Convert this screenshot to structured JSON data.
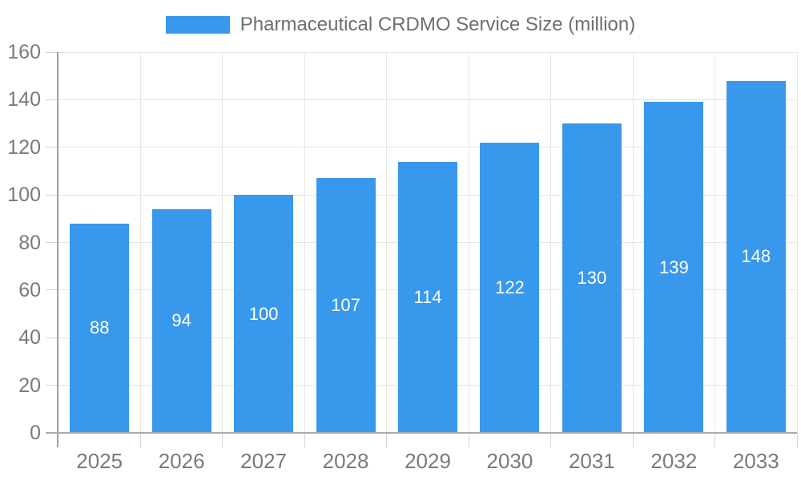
{
  "legend": {
    "label": "Pharmaceutical CRDMO Service Size (million)"
  },
  "chart_data": {
    "type": "bar",
    "title": "Pharmaceutical CRDMO Service Size (million)",
    "categories": [
      "2025",
      "2026",
      "2027",
      "2028",
      "2029",
      "2030",
      "2031",
      "2032",
      "2033"
    ],
    "values": [
      88,
      94,
      100,
      107,
      114,
      122,
      130,
      139,
      148
    ],
    "xlabel": "",
    "ylabel": "",
    "ylim": [
      0,
      160
    ],
    "yticks": [
      0,
      20,
      40,
      60,
      80,
      100,
      120,
      140,
      160
    ],
    "grid": true,
    "legend_position": "top-center",
    "value_labels": "inside-center"
  },
  "colors": {
    "bar": "#3898EC",
    "bar_value_label": "#FFFFFF",
    "grid": "#E6E6E6",
    "axis_line": "#9E9E9E",
    "bottom_axis_line": "#ABABAB",
    "minor_tick": "#D4D4D4",
    "axis_label": "#7A7A7A",
    "legend_text": "#6E6E6E",
    "background": "#FFFFFF"
  }
}
